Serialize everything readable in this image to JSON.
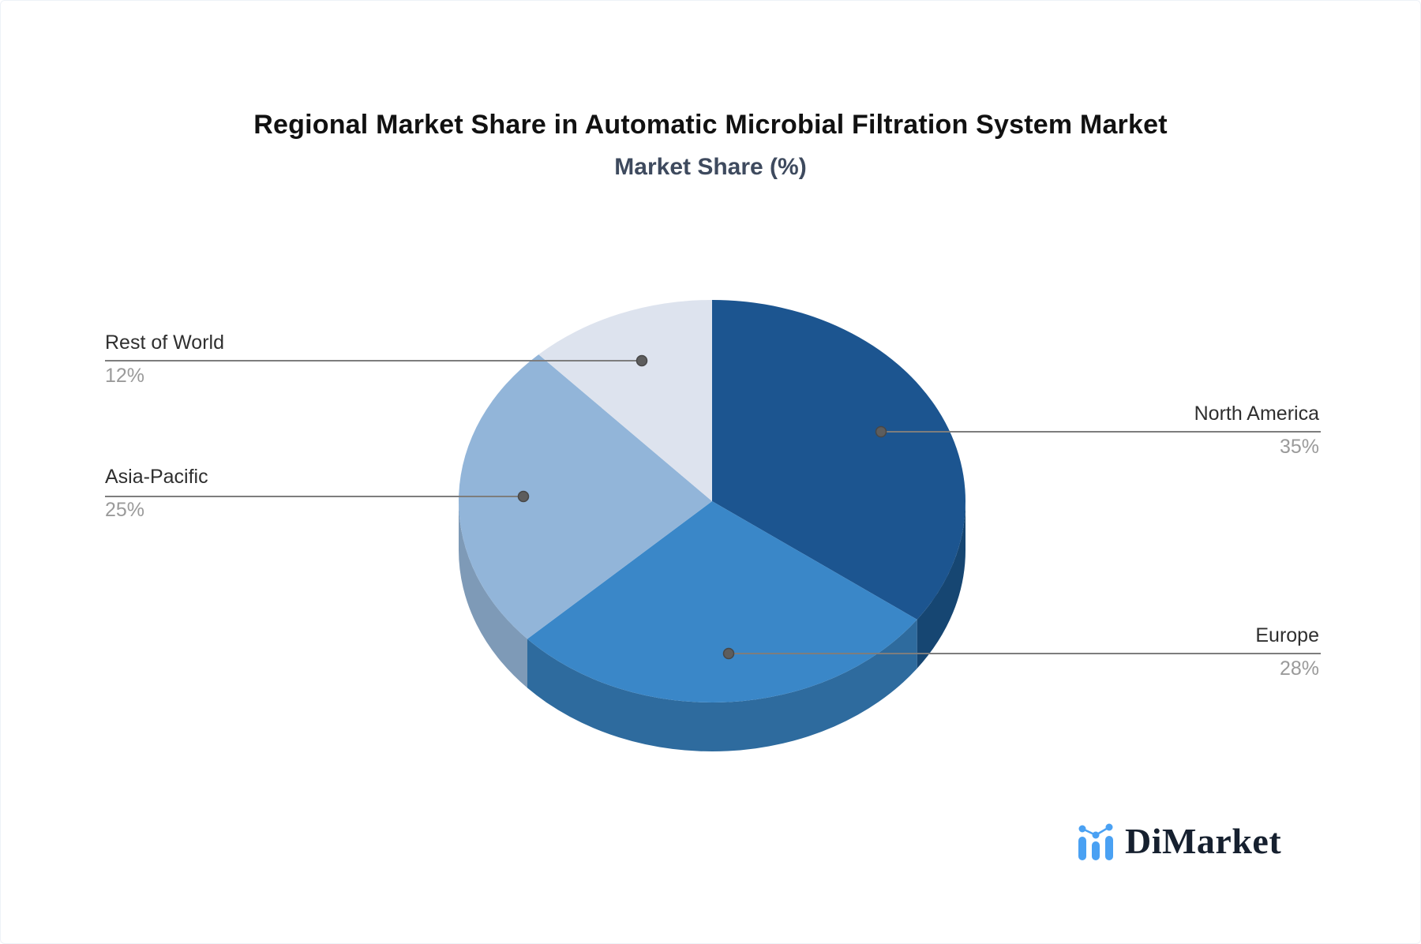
{
  "chart_data": {
    "type": "pie",
    "style": "3d-pie",
    "title": "Regional Market Share in Automatic Microbial Filtration System Market",
    "subtitle": "Market Share (%)",
    "unit": "%",
    "start_angle_deg": 0,
    "direction": "clockwise",
    "legend": "none",
    "label_style": "callout-lines",
    "background": "#ffffff",
    "slices": [
      {
        "label": "North America",
        "value": 35,
        "pct_label": "35%",
        "color": "#1c5590",
        "side_color": "#164672",
        "label_side": "right"
      },
      {
        "label": "Europe",
        "value": 28,
        "pct_label": "28%",
        "color": "#3a87c8",
        "side_color": "#2e6b9e",
        "label_side": "right"
      },
      {
        "label": "Asia-Pacific",
        "value": 25,
        "pct_label": "25%",
        "color": "#92b5d9",
        "side_color": "#7e9ab7",
        "label_side": "left"
      },
      {
        "label": "Rest of World",
        "value": 12,
        "pct_label": "12%",
        "color": "#dde3ee",
        "side_color": "#b9c3d4",
        "label_side": "left"
      }
    ],
    "colors": {
      "leader_line": "#7d7d7d",
      "leader_dot": "#5d5d5d",
      "leader_dot_edge": "#474747",
      "label_text": "#2f2f2f",
      "pct_text": "#9a9a9a",
      "title_text": "#111111",
      "subtitle_text": "#3e4a5e"
    }
  },
  "branding": {
    "logo_text": "DiMarket",
    "logo_icon": "bar-line-chart-icon",
    "logo_text_color": "#16202f",
    "logo_accent_color": "#4aa1f3"
  }
}
